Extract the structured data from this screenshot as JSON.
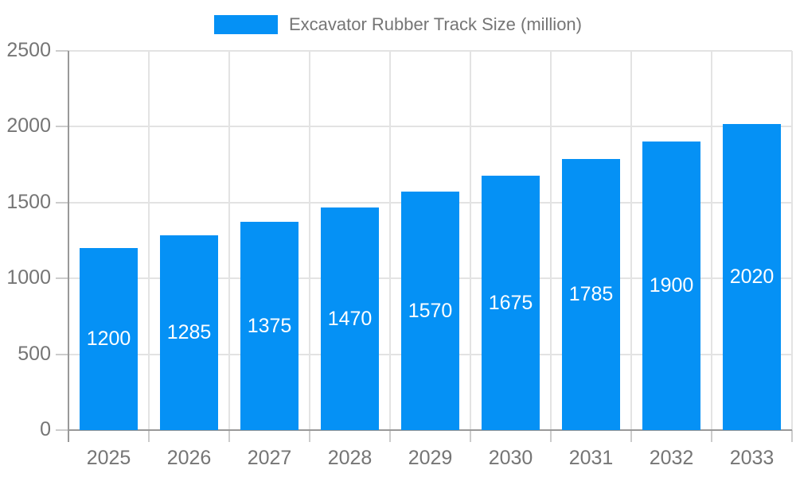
{
  "chart_data": {
    "type": "bar",
    "title": "Excavator Rubber Track Size (million)",
    "categories": [
      "2025",
      "2026",
      "2027",
      "2028",
      "2029",
      "2030",
      "2031",
      "2032",
      "2033"
    ],
    "values": [
      1200,
      1285,
      1375,
      1470,
      1570,
      1675,
      1785,
      1900,
      2020
    ],
    "xlabel": "",
    "ylabel": "",
    "ylim": [
      0,
      2500
    ],
    "yticks": [
      0,
      500,
      1000,
      1500,
      2000,
      2500
    ],
    "grid": true,
    "legend_position": "top-center",
    "bar_value_labels": "centered-white"
  },
  "legend": {
    "label": "Excavator Rubber Track Size (million)"
  },
  "colors": {
    "bar": "#0591f5",
    "grid": "#e3e3e3",
    "tick": "#cccccc",
    "axis": "#999999",
    "axis_text": "#757575",
    "bar_label": "#ffffff",
    "background": "#ffffff"
  }
}
